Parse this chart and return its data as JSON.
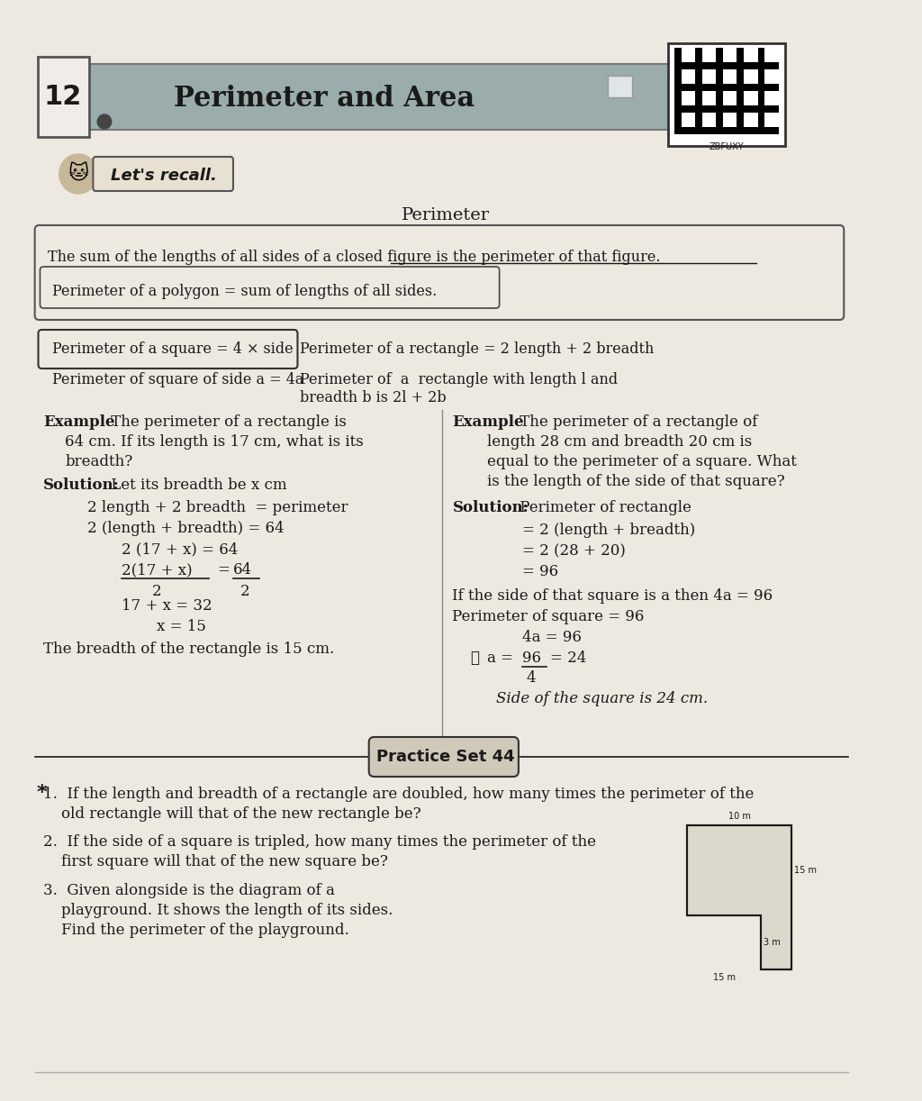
{
  "title": "Perimeter and Area",
  "chapter_num": "12",
  "lets_recall_text": "Let's recall.",
  "perimeter_heading": "Perimeter",
  "boxed1": "Perimeter of a square = 4 × side",
  "right1": "Perimeter of a rectangle = 2 length + 2 breadth",
  "line3": "Perimeter of square of side a = 4a",
  "practice_set_title": "Practice Set 44",
  "text_color": "#1a1a1a",
  "page_bg": "#ede8e0"
}
